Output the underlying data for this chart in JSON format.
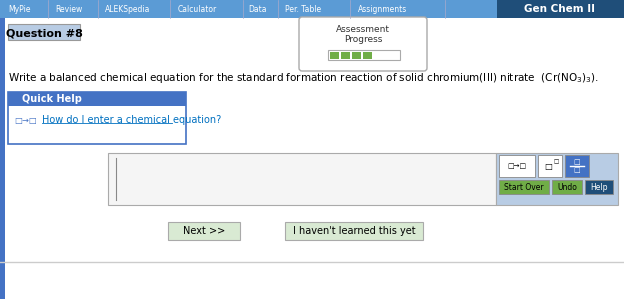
{
  "bg_color": "#ffffff",
  "nav_bg": "#5b9bd5",
  "nav_items": [
    "MyPie",
    "Review",
    "ALEKSpedia",
    "Calculator",
    "Data",
    "Per. Table",
    "Assignments"
  ],
  "nav_active": "Gen Chem II",
  "nav_active_bg": "#1f4e79",
  "question_label": "Question #8",
  "question_label_bg": "#b8cce4",
  "question_text": "Write a balanced chemical equation for the standard formation reaction of solid chromium(III) nitrate",
  "assessment_title": "Assessment\nProgress",
  "quick_help_label": "Quick Help",
  "quick_help_bg": "#4472c4",
  "quick_help_text": "How do I enter a chemical equation?",
  "quick_help_link_color": "#0070c0",
  "button_next": "Next >>",
  "button_ihl": "I haven't learned this yet",
  "button_bg": "#d9ead3",
  "button_start_over": "Start Over",
  "button_undo": "Undo",
  "button_help": "Help",
  "help_btn_bg": "#1f4e79",
  "toolbar_bg": "#b8cce4",
  "progress_bar_color": "#70ad47",
  "progress_bar_bg": "#ffffff",
  "left_border_color": "#4472c4"
}
